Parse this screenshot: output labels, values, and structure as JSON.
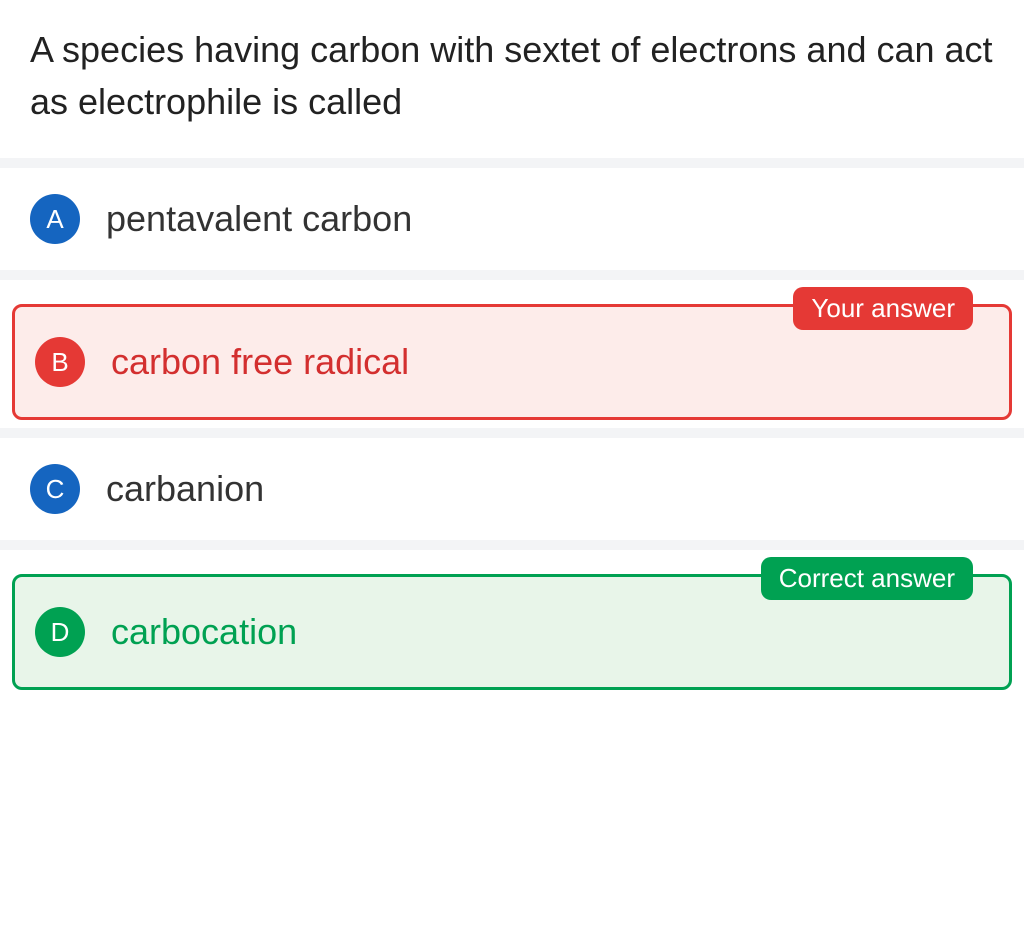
{
  "question": {
    "text": "A species having carbon with sextet of electrons and can act as electrophile is called"
  },
  "options": {
    "a": {
      "letter": "A",
      "label": "pentavalent carbon",
      "badge_bg": "#1565c0",
      "text_color": "#333333",
      "state": "plain"
    },
    "b": {
      "letter": "B",
      "label": "carbon free radical",
      "badge_bg": "#e53935",
      "text_color": "#d32f2f",
      "state": "your_answer",
      "box_border": "#e53935",
      "box_bg": "#fdecea",
      "tag_bg": "#e53935",
      "tag_text": "Your answer"
    },
    "c": {
      "letter": "C",
      "label": "carbanion",
      "badge_bg": "#1565c0",
      "text_color": "#333333",
      "state": "plain"
    },
    "d": {
      "letter": "D",
      "label": "carbocation",
      "badge_bg": "#00a152",
      "text_color": "#00a152",
      "state": "correct_answer",
      "box_border": "#00a152",
      "box_bg": "#e8f5e9",
      "tag_bg": "#00a152",
      "tag_text": "Correct answer"
    }
  },
  "colors": {
    "page_bg": "#ffffff",
    "gap_bg": "#f3f4f6",
    "question_text": "#222222"
  },
  "typography": {
    "question_fontsize": 36,
    "option_fontsize": 36,
    "badge_fontsize": 26,
    "tag_fontsize": 26
  }
}
